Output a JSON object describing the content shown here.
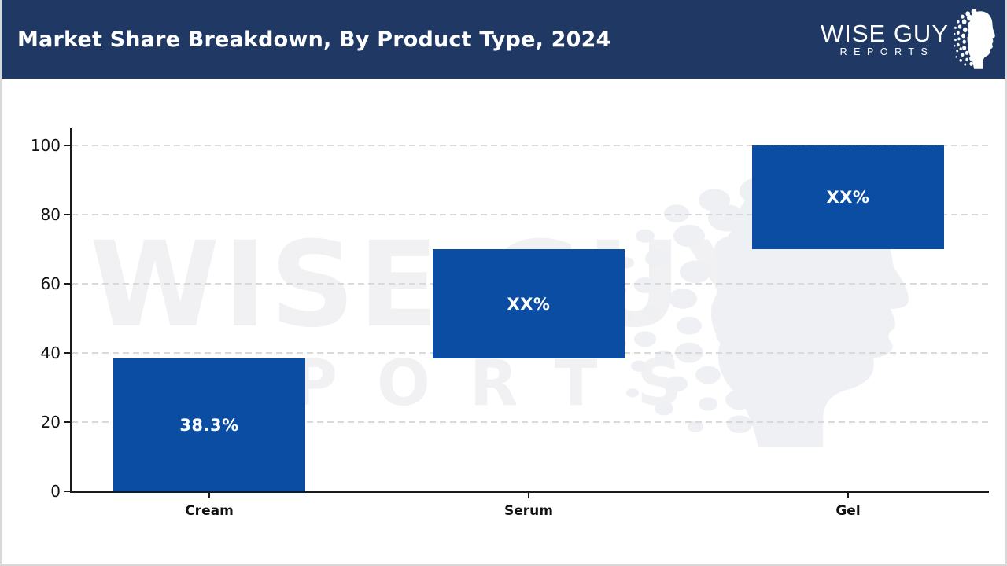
{
  "header": {
    "title": "Market Share Breakdown, By Product Type, 2024",
    "logo": {
      "wordmark": "WISE GUY",
      "subtext": "REPORTS",
      "head_icon": "dotted-head-profile-icon"
    }
  },
  "watermark": {
    "wordmark": "WISE GUY",
    "subtext": "REPORTS",
    "head_icon": "dotted-head-profile-icon"
  },
  "colors": {
    "header_bg": "#1f3864",
    "title_text": "#ffffff",
    "bar": "#0b4da2",
    "bar_label": "#ffffff",
    "grid": "#d9d9d9",
    "axis": "#1a1a1a",
    "watermark": "#f1f1f4",
    "page_border": "#d8d8d8"
  },
  "chart_data": {
    "type": "bar",
    "subtype": "waterfall-floating-segments",
    "title": "Market Share Breakdown, By Product Type, 2024",
    "categories": [
      "Cream",
      "Serum",
      "Gel"
    ],
    "segments": [
      {
        "category": "Cream",
        "start": 0,
        "end": 38.3,
        "label": "38.3%"
      },
      {
        "category": "Serum",
        "start": 38.3,
        "end": 70,
        "label": "XX%"
      },
      {
        "category": "Gel",
        "start": 70,
        "end": 100,
        "label": "XX%"
      }
    ],
    "xlabel": "",
    "ylabel": "",
    "ylim": [
      0,
      100
    ],
    "yticks": [
      0,
      20,
      40,
      60,
      80,
      100
    ],
    "grid": "horizontal-dashed",
    "legend": "none",
    "bar_color": "#0b4da2",
    "label_color": "#ffffff"
  }
}
